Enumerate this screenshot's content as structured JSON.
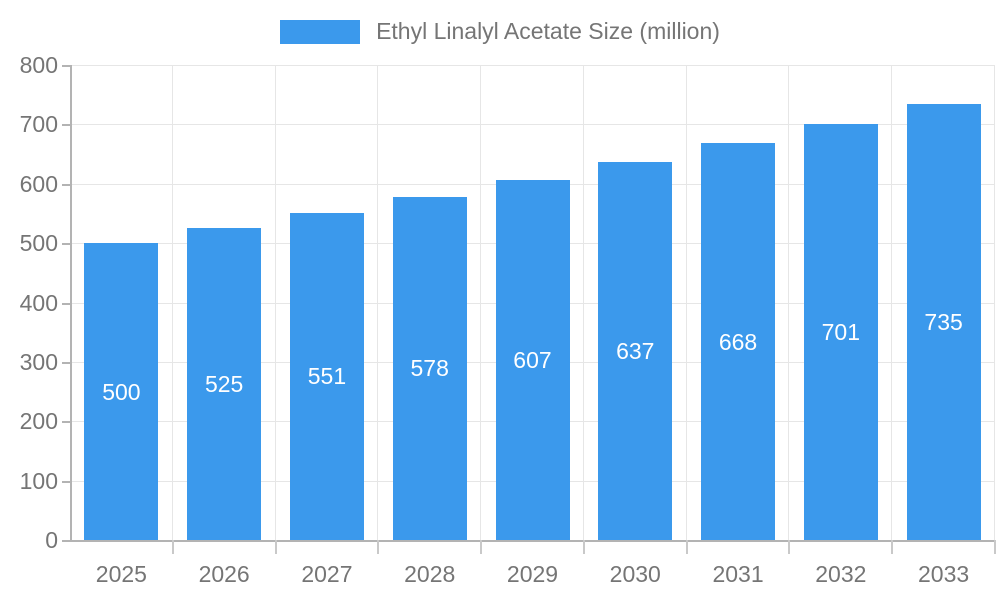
{
  "chart_data": {
    "type": "bar",
    "legend": "Ethyl Linalyl Acetate Size (million)",
    "categories": [
      "2025",
      "2026",
      "2027",
      "2028",
      "2029",
      "2030",
      "2031",
      "2032",
      "2033"
    ],
    "values": [
      500,
      525,
      551,
      578,
      607,
      637,
      668,
      701,
      735
    ],
    "value_labels": [
      "500",
      "525",
      "551",
      "578",
      "607",
      "637",
      "668",
      "701",
      "735"
    ],
    "y_ticks": [
      "0",
      "100",
      "200",
      "300",
      "400",
      "500",
      "600",
      "700",
      "800"
    ],
    "ylim": [
      0,
      800
    ],
    "y_step": 100,
    "grid": "on",
    "legend_position": "top-center",
    "colors": {
      "bar": "#3b99ec",
      "grid": "#e6e6e6",
      "axis": "#b3b3b3",
      "text": "#757575",
      "value_label": "#ffffff"
    }
  }
}
